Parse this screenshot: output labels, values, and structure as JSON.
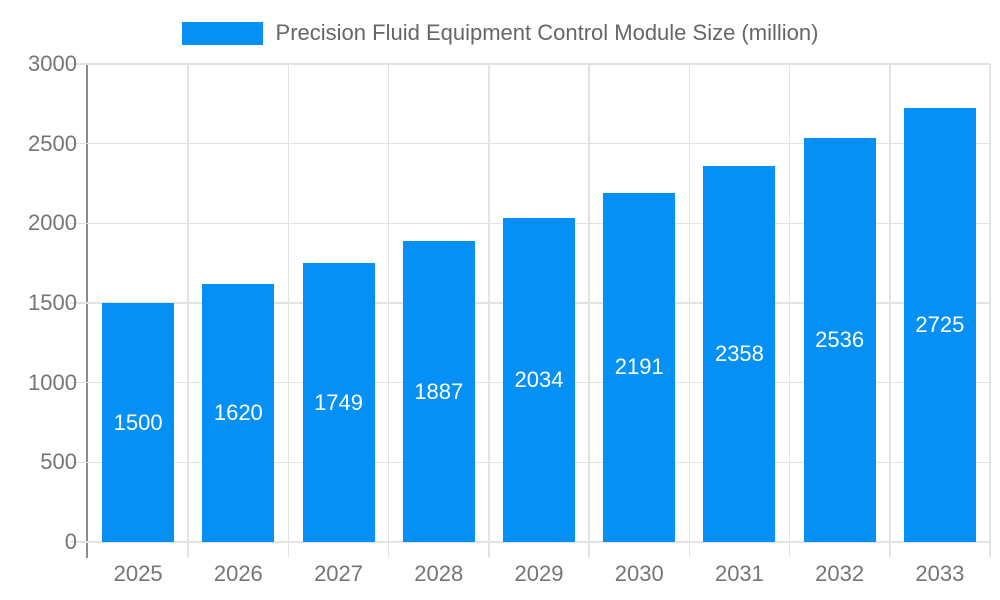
{
  "chart_data": {
    "type": "bar",
    "title": "Precision Fluid Equipment Control Module Size (million)",
    "series_name": "Precision Fluid Equipment Control Module Size (million)",
    "categories": [
      "2025",
      "2026",
      "2027",
      "2028",
      "2029",
      "2030",
      "2031",
      "2032",
      "2033"
    ],
    "values": [
      1500,
      1620,
      1749,
      1887,
      2034,
      2191,
      2358,
      2536,
      2725
    ],
    "xlabel": "",
    "ylabel": "",
    "ylim": [
      0,
      3000
    ],
    "yticks": [
      0,
      500,
      1000,
      1500,
      2000,
      2500,
      3000
    ],
    "grid": true,
    "legend_position": "top-center",
    "value_labels": "inside-center",
    "colors": {
      "bar": "#0590F5",
      "value_label": "#FFFFFF",
      "grid_line": "#E3E3E3",
      "axis_line": "#8C8C8C",
      "tick_label": "#757575",
      "title_text": "#666666",
      "background": "#FFFFFF"
    }
  }
}
